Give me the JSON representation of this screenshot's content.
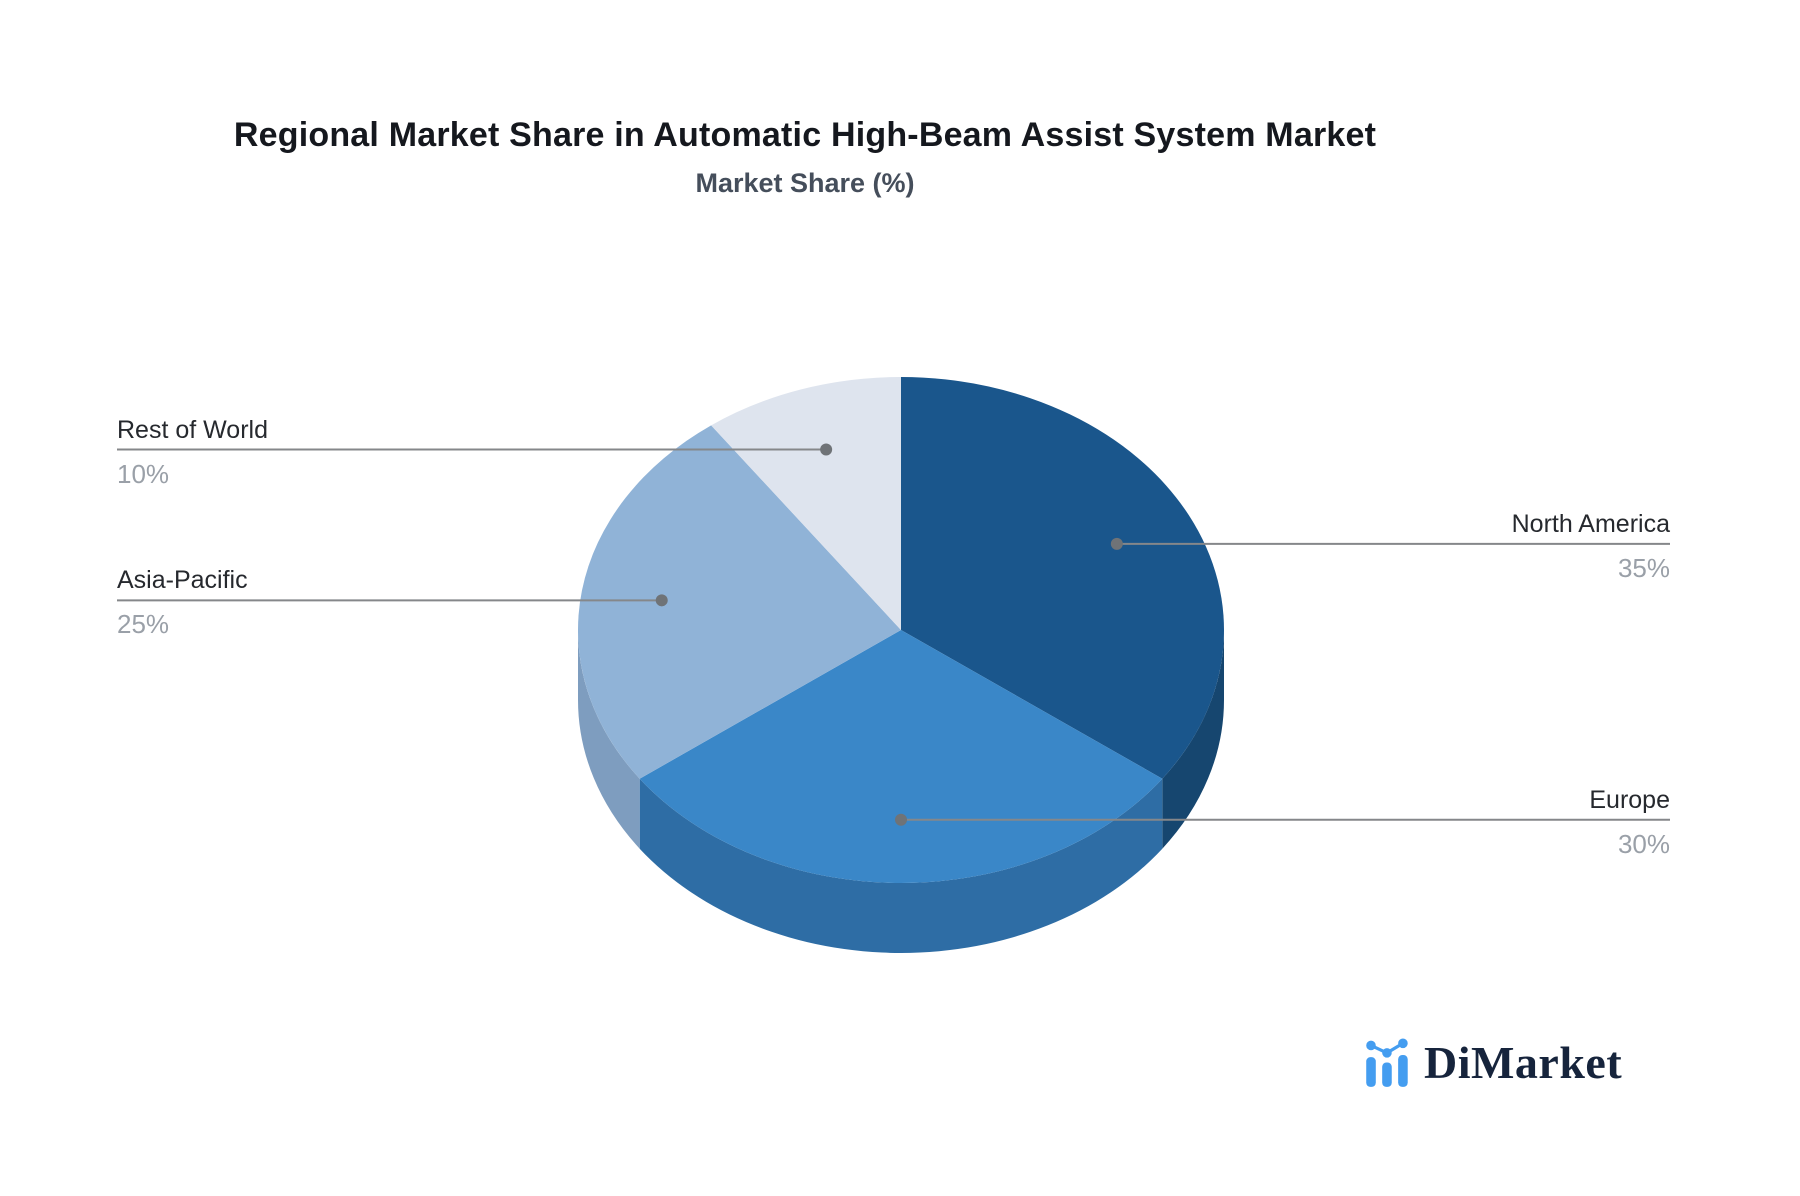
{
  "header": {
    "title": "Regional Market Share in Automatic High-Beam Assist System Market",
    "subtitle": "Market Share (%)"
  },
  "chart_data": {
    "type": "pie",
    "title": "Regional Market Share in Automatic High-Beam Assist System Market",
    "subtitle": "Market Share (%)",
    "unit": "%",
    "effect": "3d-depth",
    "start_angle_deg": 90,
    "direction": "clockwise",
    "legend_position": "callout-labels",
    "slices": [
      {
        "label": "North America",
        "value": 35,
        "display": "35%",
        "color": "#1a568c",
        "side_color": "#16466f"
      },
      {
        "label": "Europe",
        "value": 30,
        "display": "30%",
        "color": "#3a87c8",
        "side_color": "#2e6da5"
      },
      {
        "label": "Asia-Pacific",
        "value": 25,
        "display": "25%",
        "color": "#90b3d7",
        "side_color": "#7e9dbf"
      },
      {
        "label": "Rest of World",
        "value": 10,
        "display": "10%",
        "color": "#dee4ee",
        "side_color": "#c3cdda"
      }
    ],
    "connector": {
      "line_color": "#85878a",
      "dot_color": "#6f7377"
    }
  },
  "branding": {
    "name": "DiMarket",
    "icon": "bar-chart-trend-icon",
    "icon_color": "#449df0",
    "text_color": "#16243c"
  }
}
